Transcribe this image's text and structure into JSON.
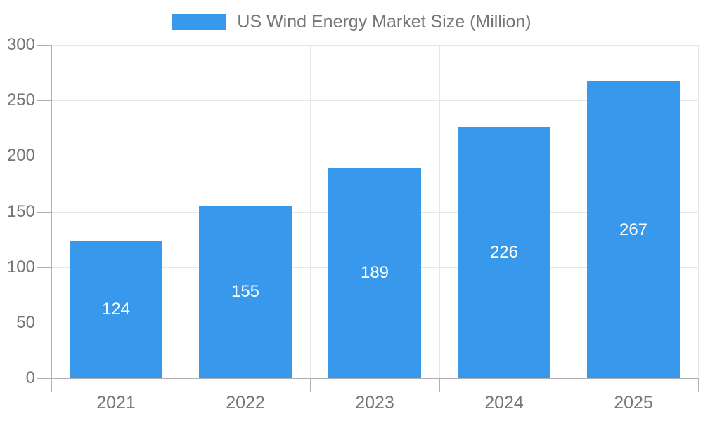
{
  "colors": {
    "bar": "#3899ec",
    "grid": "#e6e6e6",
    "axis": "#b0b0b0",
    "tick_text": "#757575",
    "value_text": "#ffffff",
    "background": "#ffffff"
  },
  "chart_data": {
    "type": "bar",
    "title": "US Wind Energy Market Size (Million)",
    "series": [
      {
        "name": "US Wind Energy Market Size (Million)",
        "values": [
          124,
          155,
          189,
          226,
          267
        ]
      }
    ],
    "categories": [
      "2021",
      "2022",
      "2023",
      "2024",
      "2025"
    ],
    "xlabel": "",
    "ylabel": "",
    "ylim": [
      0,
      300
    ],
    "ytick_step": 50,
    "ytick_labels": [
      "0",
      "50",
      "100",
      "150",
      "200",
      "250",
      "300"
    ],
    "grid": true,
    "legend_position": "top-center",
    "value_label_position": "inside-center"
  }
}
